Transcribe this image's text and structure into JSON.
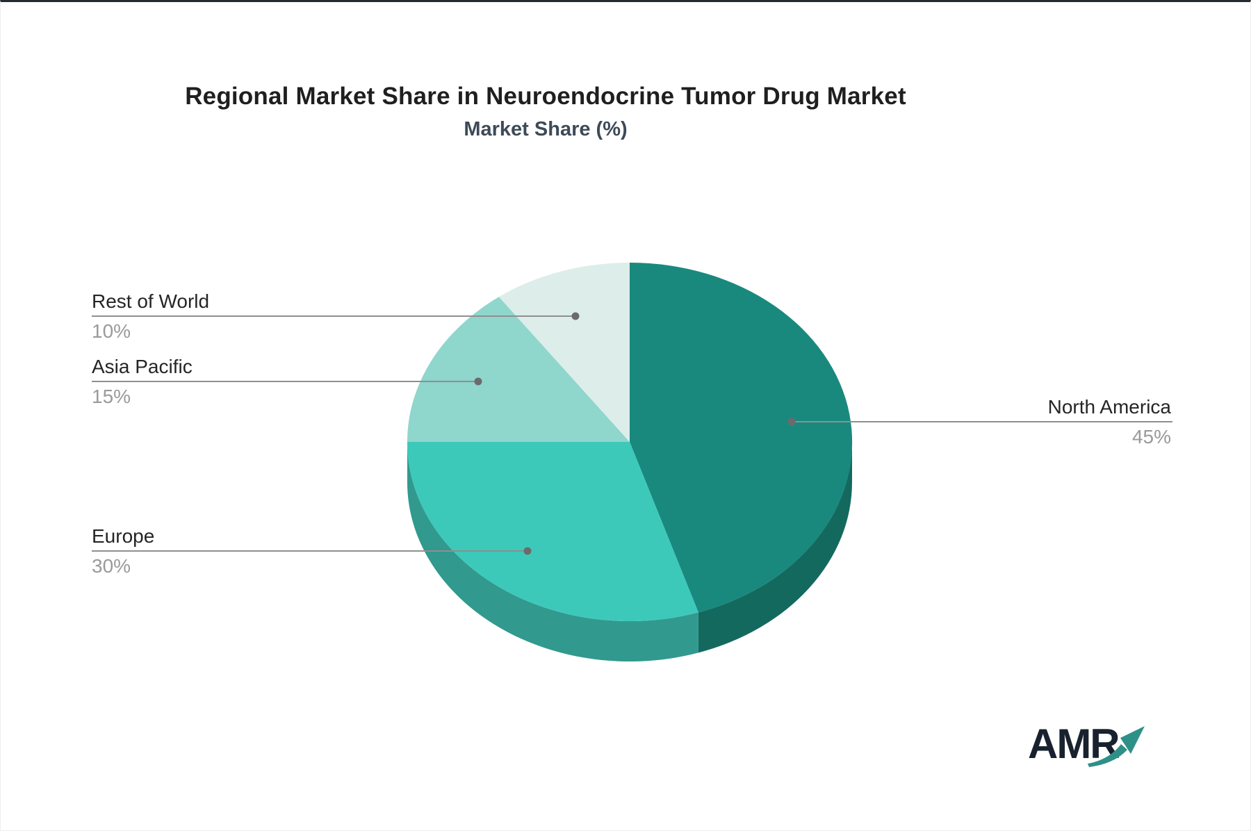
{
  "header": {
    "title": "Regional Market Share in Neuroendocrine Tumor Drug Market",
    "subtitle": "Market Share (%)"
  },
  "chart_data": {
    "type": "pie",
    "title": "Regional Market Share in Neuroendocrine Tumor Drug Market",
    "subtitle": "Market Share (%)",
    "unit": "%",
    "direction": "clockwise",
    "start_position": "12-oclock",
    "effect": "3d-depth",
    "segments": [
      {
        "label": "North America",
        "value": 45,
        "display_value": "45%",
        "color": "#19897E",
        "side_color": "#14695F",
        "label_side": "right"
      },
      {
        "label": "Europe",
        "value": 30,
        "display_value": "30%",
        "color": "#3CC9BA",
        "side_color": "#31998E",
        "label_side": "left"
      },
      {
        "label": "Asia Pacific",
        "value": 15,
        "display_value": "15%",
        "color": "#8FD6CC",
        "label_side": "left"
      },
      {
        "label": "Rest of World",
        "value": 10,
        "display_value": "10%",
        "color": "#DDEDE9",
        "label_side": "left"
      }
    ],
    "legend": "none",
    "callout_line_color": "#8f8f8f",
    "callout_dot_color": "#6b6b6b",
    "label_text_color": "#252525",
    "value_text_color": "#9a9a9a"
  },
  "logo": {
    "text": "AMR",
    "text_color": "#18222e",
    "arrow_color": "#2E9188",
    "arrow_icon": "trend-up-arrow"
  }
}
